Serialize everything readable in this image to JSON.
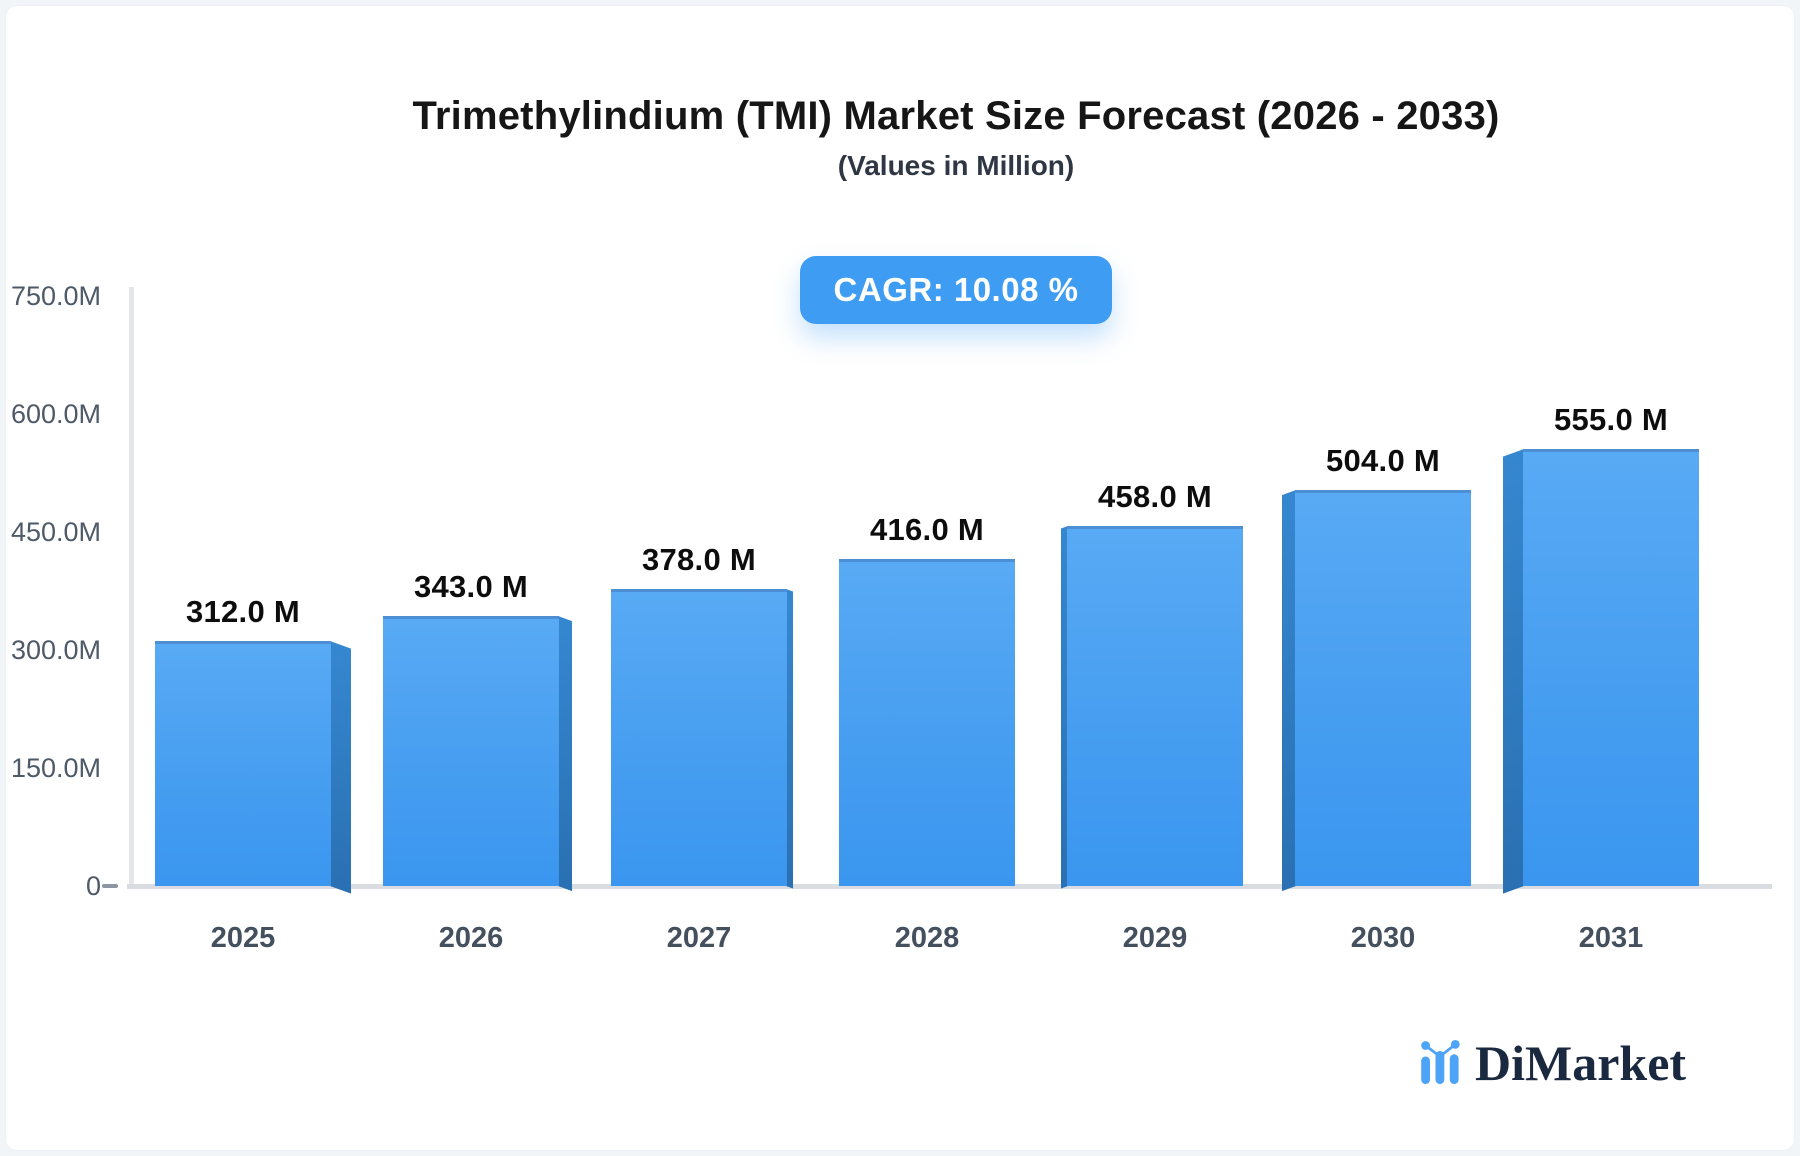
{
  "header": {
    "title": "Trimethylindium (TMI) Market Size Forecast (2026 - 2033)",
    "subtitle": "(Values in Million)",
    "cagr_badge": "CAGR: 10.08 %"
  },
  "logo": {
    "brand": "DiMarket",
    "icon": "mini-bar-chart-with-trend-line"
  },
  "colors": {
    "accent_blue": "#3e9df3",
    "bar_gradient_top": "#58aaf4",
    "bar_gradient_bottom": "#3a96ef",
    "bar_side_face": "#2e77bc",
    "title_text": "#161616",
    "subtitle_text": "#2f3744",
    "value_label_text": "#0d0d0d",
    "y_axis_text": "#4e5a68",
    "x_axis_text": "#45505f",
    "axis_line": "#e3e6ea",
    "logo_navy": "#1b2940",
    "badge_text": "#ffffff"
  },
  "chart_data": {
    "type": "bar",
    "title": "Trimethylindium (TMI) Market Size Forecast (2026 - 2033)",
    "subtitle": "(Values in Million)",
    "categories": [
      "2025",
      "2026",
      "2027",
      "2028",
      "2029",
      "2030",
      "2031"
    ],
    "values": [
      312.0,
      343.0,
      378.0,
      416.0,
      458.0,
      504.0,
      555.0
    ],
    "bar_labels": [
      "312.0 M",
      "343.0 M",
      "378.0 M",
      "416.0 M",
      "458.0 M",
      "504.0 M",
      "555.0 M"
    ],
    "unit": "Million",
    "cagr_percent": 10.08,
    "ylim": [
      0,
      750
    ],
    "ytick_step": 150,
    "ytick_labels": [
      "0",
      "150.0M",
      "300.0M",
      "450.0M",
      "600.0M",
      "750.0M"
    ],
    "grid": false,
    "legend": false,
    "style": "3d-perspective-bars"
  }
}
